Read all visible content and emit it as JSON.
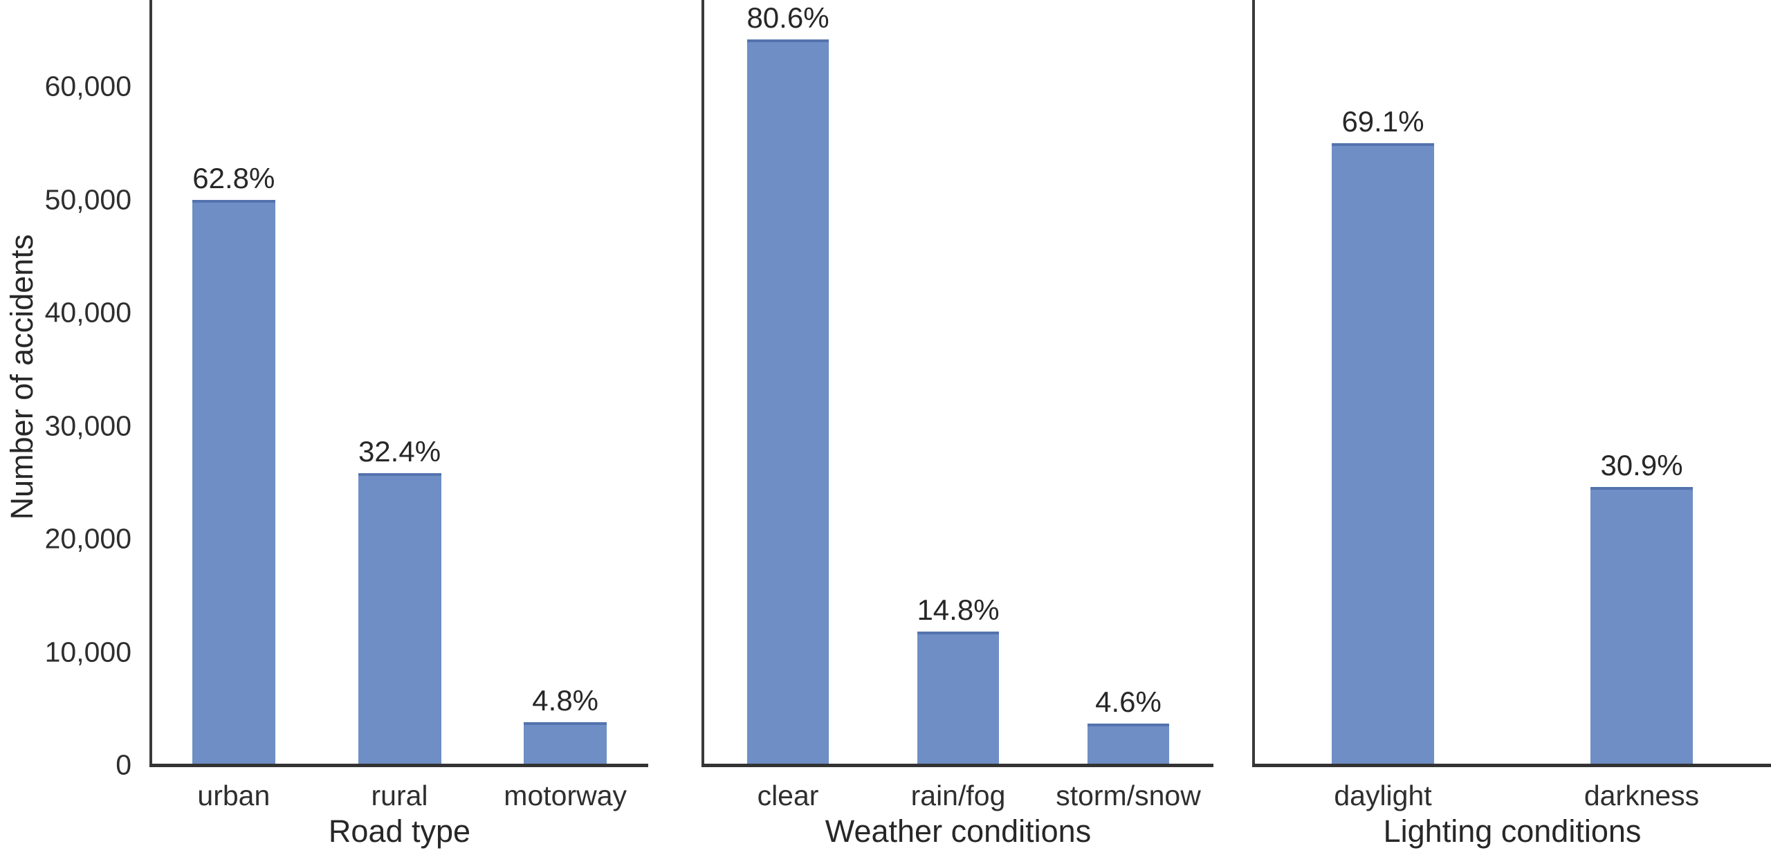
{
  "chart_data": {
    "type": "bar",
    "title": "",
    "ylabel": "Number of accidents",
    "ylim": [
      0,
      67600
    ],
    "grid": false,
    "legend": "none",
    "bar_color": "#6e8ec5",
    "bar_edge_color": "#5473ae",
    "spine_color": "#3a3a3a",
    "ytick_values": [
      0,
      10000,
      20000,
      30000,
      40000,
      50000,
      60000
    ],
    "ytick_labels": [
      "0",
      "10,000",
      "20,000",
      "30,000",
      "40,000",
      "50,000",
      "60,000"
    ],
    "panels": [
      {
        "xlabel": "Road type",
        "categories": [
          "urban",
          "rural",
          "motorway"
        ],
        "values": [
          50000,
          25800,
          3820
        ],
        "pct_labels": [
          "62.8%",
          "32.4%",
          "4.8%"
        ]
      },
      {
        "xlabel": "Weather conditions",
        "categories": [
          "clear",
          "rain/fog",
          "storm/snow"
        ],
        "values": [
          64160,
          11780,
          3660
        ],
        "pct_labels": [
          "80.6%",
          "14.8%",
          "4.6%"
        ]
      },
      {
        "xlabel": "Lighting conditions",
        "categories": [
          "daylight",
          "darkness"
        ],
        "values": [
          55000,
          24600
        ],
        "pct_labels": [
          "69.1%",
          "30.9%"
        ]
      }
    ]
  }
}
